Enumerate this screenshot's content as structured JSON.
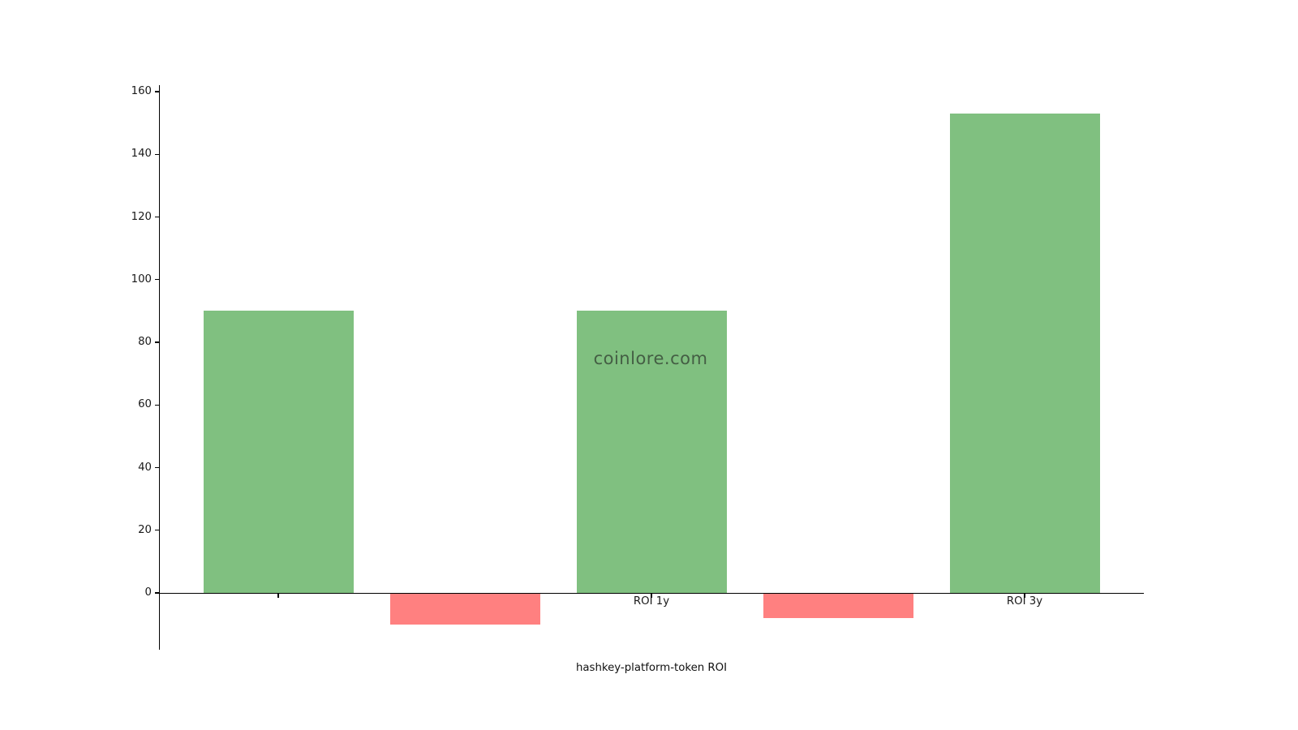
{
  "watermark": "coinlore.com",
  "chart_data": {
    "type": "bar",
    "title": "hashkey-platform-token ROI",
    "xlabel": "hashkey-platform-token ROI",
    "ylabel": "",
    "categories": [
      "",
      "",
      "ROI 1y",
      "",
      "ROI 3y"
    ],
    "values": [
      90,
      -10,
      90,
      -8,
      153
    ],
    "yticks": [
      0,
      20,
      40,
      60,
      80,
      100,
      120,
      140,
      160
    ],
    "ylim": [
      -18,
      162
    ],
    "grid": false,
    "legend": null,
    "positive_color": "#80C080",
    "negative_color": "#FF8080",
    "axis_color": "#000000",
    "tick_label_color": "#1a1a1a",
    "watermark_color": "#2d372d"
  }
}
